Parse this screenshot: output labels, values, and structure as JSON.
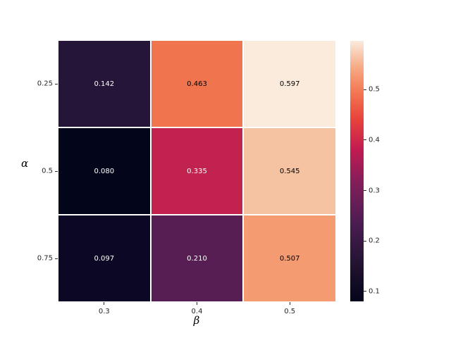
{
  "figure": {
    "background": "#ffffff"
  },
  "chart_data": {
    "type": "heatmap",
    "title": "",
    "xlabel": "β",
    "ylabel": "α",
    "x_tick_labels": [
      "0.3",
      "0.4",
      "0.5"
    ],
    "y_tick_labels": [
      "0.25",
      "0.5",
      "0.75"
    ],
    "values": [
      [
        0.142,
        0.463,
        0.597
      ],
      [
        0.08,
        0.335,
        0.545
      ],
      [
        0.097,
        0.21,
        0.507
      ]
    ],
    "cell_labels": [
      [
        "0.142",
        "0.463",
        "0.597"
      ],
      [
        "0.080",
        "0.335",
        "0.545"
      ],
      [
        "0.097",
        "0.210",
        "0.507"
      ]
    ],
    "cell_colors": [
      [
        "#251538",
        "#f0744d",
        "#faebdd"
      ],
      [
        "#03051a",
        "#c2224e",
        "#f6c3a2"
      ],
      [
        "#0b0724",
        "#571e53",
        "#f49b72"
      ]
    ],
    "cell_text_colors": [
      [
        "#ffffff",
        "#000000",
        "#000000"
      ],
      [
        "#ffffff",
        "#ffffff",
        "#000000"
      ],
      [
        "#ffffff",
        "#ffffff",
        "#000000"
      ]
    ],
    "grid_line_color": "#ffffff",
    "colormap": "rocket",
    "legend_position": "right-colorbar",
    "colorbar": {
      "vmin": 0.08,
      "vmax": 0.597,
      "tick_values": [
        0.1,
        0.2,
        0.3,
        0.4,
        0.5
      ],
      "tick_labels": [
        "0.1",
        "0.2",
        "0.3",
        "0.4",
        "0.5"
      ],
      "gradient": [
        {
          "pos": 0,
          "color": "#03051a"
        },
        {
          "pos": 14,
          "color": "#221331"
        },
        {
          "pos": 30,
          "color": "#4b1d52"
        },
        {
          "pos": 46,
          "color": "#841e5a"
        },
        {
          "pos": 58,
          "color": "#c11a52"
        },
        {
          "pos": 70,
          "color": "#e8433c"
        },
        {
          "pos": 80,
          "color": "#f37651"
        },
        {
          "pos": 90,
          "color": "#f6ab86"
        },
        {
          "pos": 100,
          "color": "#faebdd"
        }
      ]
    }
  }
}
